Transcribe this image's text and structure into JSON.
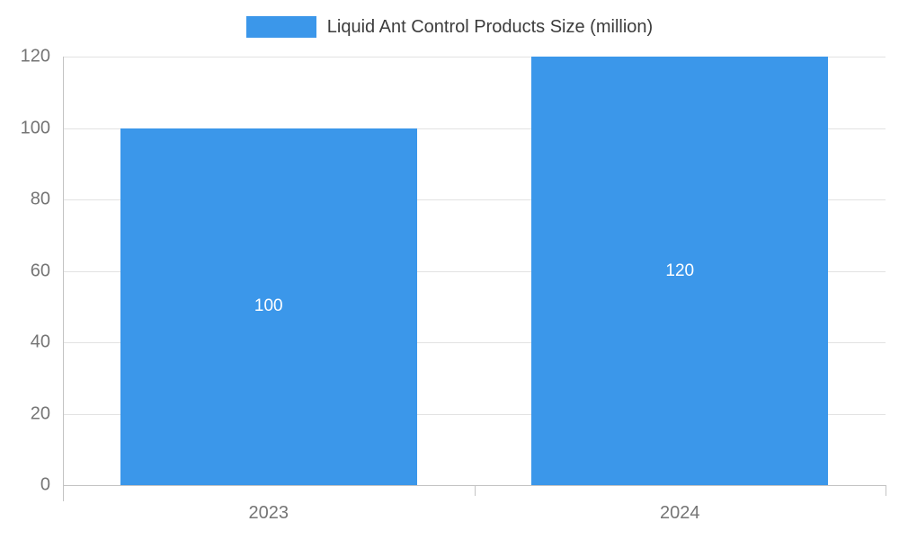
{
  "legend": {
    "label": "Liquid Ant Control Products Size (million)"
  },
  "chart_data": {
    "type": "bar",
    "title": "Liquid Ant Control Products Size (million)",
    "categories": [
      "2023",
      "2024"
    ],
    "values": [
      100,
      120
    ],
    "xlabel": "",
    "ylabel": "",
    "ylim": [
      0,
      120
    ],
    "yticks": [
      0,
      20,
      40,
      60,
      80,
      100,
      120
    ],
    "grid": true,
    "legend_position": "top-center",
    "bar_color": "#3B97EA",
    "value_labels": [
      "100",
      "120"
    ],
    "value_label_color": "#ffffff",
    "grid_color": "#e2e2e2",
    "axis_color": "#c4c4c4",
    "tick_text_color": "#757575"
  }
}
